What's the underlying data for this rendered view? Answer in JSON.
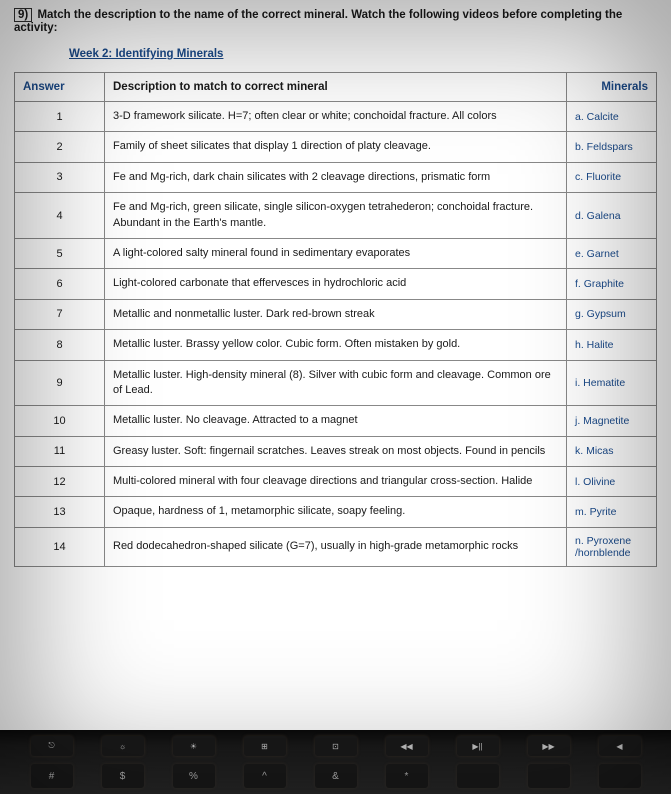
{
  "question": {
    "number": "9)",
    "text": "Match the description to the name of the correct mineral. Watch the following videos before completing the activity:"
  },
  "link": "Week 2: Identifying Minerals",
  "headers": {
    "answer": "Answer",
    "description": "Description to match to correct mineral",
    "minerals": "Minerals"
  },
  "rows": [
    {
      "num": "1",
      "desc": "3-D framework silicate. H=7; often clear or white; conchoidal fracture. All colors",
      "mineral": "a. Calcite"
    },
    {
      "num": "2",
      "desc": "Family of sheet silicates that display 1 direction of platy cleavage.",
      "mineral": "b. Feldspars"
    },
    {
      "num": "3",
      "desc": "Fe and Mg-rich, dark chain silicates with 2 cleavage directions, prismatic form",
      "mineral": "c. Fluorite"
    },
    {
      "num": "4",
      "desc": "Fe and Mg-rich, green silicate, single silicon-oxygen tetrahederon; conchoidal fracture. Abundant in the Earth's mantle.",
      "mineral": "d. Galena"
    },
    {
      "num": "5",
      "desc": "A light-colored salty mineral found in sedimentary evaporates",
      "mineral": "e. Garnet"
    },
    {
      "num": "6",
      "desc": "Light-colored carbonate that effervesces in hydrochloric acid",
      "mineral": "f. Graphite"
    },
    {
      "num": "7",
      "desc": "Metallic and nonmetallic luster. Dark red-brown streak",
      "mineral": "g. Gypsum"
    },
    {
      "num": "8",
      "desc": "Metallic luster. Brassy yellow color. Cubic form. Often mistaken by gold.",
      "mineral": "h. Halite"
    },
    {
      "num": "9",
      "desc": "Metallic luster. High-density mineral (8). Silver with cubic form and cleavage. Common ore of Lead.",
      "mineral": "i. Hematite"
    },
    {
      "num": "10",
      "desc": "Metallic luster. No cleavage. Attracted to a magnet",
      "mineral": "j. Magnetite"
    },
    {
      "num": "11",
      "desc": "Greasy luster. Soft: fingernail scratches. Leaves streak on most objects. Found in pencils",
      "mineral": "k. Micas"
    },
    {
      "num": "12",
      "desc": "Multi-colored mineral with four cleavage directions and triangular cross-section. Halide",
      "mineral": "l. Olivine"
    },
    {
      "num": "13",
      "desc": "Opaque, hardness of 1, metamorphic silicate, soapy feeling.",
      "mineral": "m. Pyrite"
    },
    {
      "num": "14",
      "desc": "Red dodecahedron-shaped silicate (G=7), usually in high-grade metamorphic rocks",
      "mineral": "n. Pyroxene /hornblende"
    }
  ],
  "fkeys": [
    "⎋",
    "☼",
    "☀",
    "⊞",
    "⊡",
    "◀◀",
    "▶||",
    "▶▶",
    "◀"
  ],
  "nkeys": [
    "#",
    "$",
    "%",
    "^",
    "&",
    "*",
    "",
    "",
    ""
  ]
}
